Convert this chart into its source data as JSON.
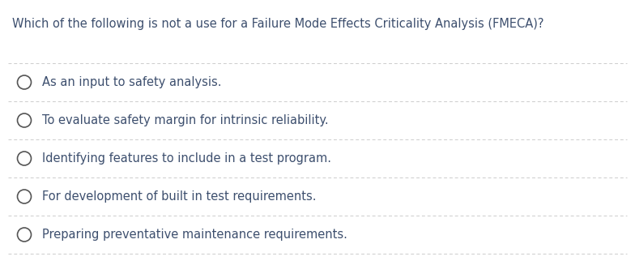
{
  "question": "Which of the following is not a use for a Failure Mode Effects Criticality Analysis (FMECA)?",
  "options": [
    "As an input to safety analysis.",
    "To evaluate safety margin for intrinsic reliability.",
    "Identifying features to include in a test program.",
    "For development of built in test requirements.",
    "Preparing preventative maintenance requirements."
  ],
  "bg_color": "#ffffff",
  "question_color": "#3d4f6e",
  "option_color": "#3d4f6e",
  "line_color": "#cccccc",
  "question_fontsize": 10.5,
  "option_fontsize": 10.5,
  "circle_color": "#555555",
  "fig_width": 7.84,
  "fig_height": 3.43,
  "dpi": 100
}
